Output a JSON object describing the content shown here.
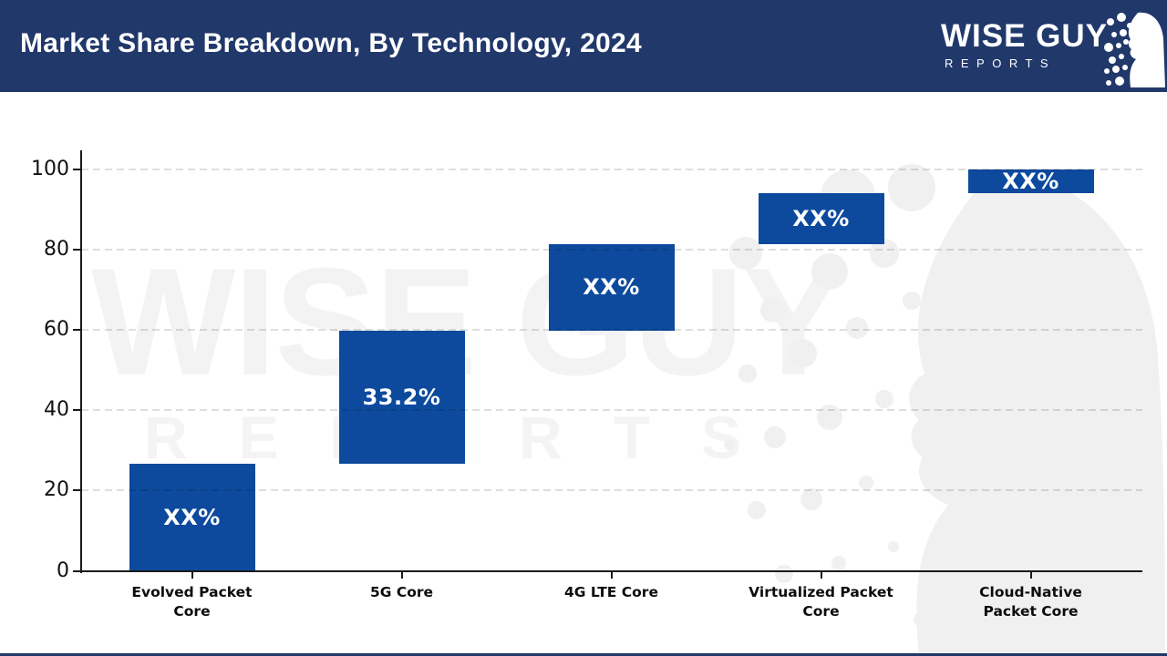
{
  "header": {
    "logo_line1": "WISE GUY",
    "logo_line2": "REPORTS"
  },
  "watermark": {
    "text_line1": "WISE GUY",
    "text_line2": "REPORTS"
  },
  "colors": {
    "header_bg": "#21386b",
    "footer_bg": "#21386b",
    "bar_blue": "#0d4a9e",
    "axis": "#1a1a1a",
    "grid": "#d9d9d9",
    "watermark_gray": "#f0f0f0"
  },
  "chart_data": {
    "type": "bar",
    "variant": "waterfall",
    "title": "Market Share Breakdown, By Technology, 2024",
    "categories": [
      "Evolved Packet Core",
      "5G Core",
      "4G LTE Core",
      "Virtualized Packet Core",
      "Cloud-Native Packet Core"
    ],
    "x_tick_lines": [
      [
        "Evolved Packet",
        "Core"
      ],
      [
        "5G Core"
      ],
      [
        "4G LTE Core"
      ],
      [
        "Virtualized Packet",
        "Core"
      ],
      [
        "Cloud-Native",
        "Packet Core"
      ]
    ],
    "segments": [
      {
        "category": "Evolved Packet Core",
        "start": 0,
        "end": 26.7,
        "value": 26.7,
        "label": "XX%"
      },
      {
        "category": "5G Core",
        "start": 26.7,
        "end": 59.9,
        "value": 33.2,
        "label": "33.2%"
      },
      {
        "category": "4G LTE Core",
        "start": 59.9,
        "end": 81.4,
        "value": 21.5,
        "label": "XX%"
      },
      {
        "category": "Virtualized Packet Core",
        "start": 81.4,
        "end": 94.2,
        "value": 12.8,
        "label": "XX%"
      },
      {
        "category": "Cloud-Native Packet Core",
        "start": 94.2,
        "end": 100,
        "value": 5.8,
        "label": "XX%"
      }
    ],
    "xlabel": "",
    "ylabel": "",
    "ylim": [
      0,
      105
    ],
    "yticks": [
      0,
      20,
      40,
      60,
      80,
      100
    ],
    "grid": true,
    "legend": false
  }
}
